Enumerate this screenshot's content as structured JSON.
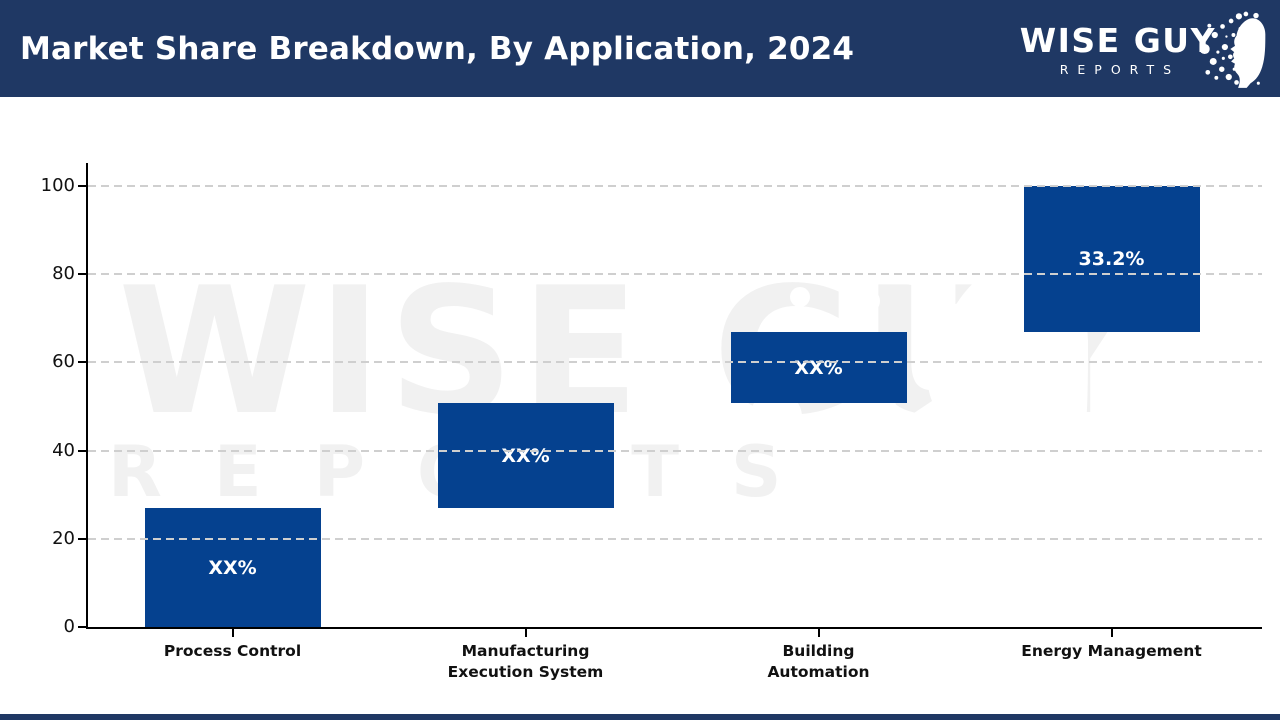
{
  "header": {
    "title": "Market Share Breakdown, By Application, 2024",
    "logo": {
      "wordmark": "WISE GUY",
      "subtext": "REPORTS"
    }
  },
  "watermark": {
    "wordmark": "WISE GUY",
    "subtext": "REPORTS"
  },
  "colors": {
    "header_bg": "#1f3864",
    "bar": "#05418f",
    "grid": "#cfcfcf",
    "watermark": "#f1f1f1",
    "bar_label": "#ffffff"
  },
  "chart_data": {
    "type": "bar",
    "variant": "floating-waterfall",
    "title": "Market Share Breakdown, By Application, 2024",
    "xlabel": "",
    "ylabel": "",
    "ylim": [
      0,
      100
    ],
    "yticks": [
      0,
      20,
      40,
      60,
      80,
      100
    ],
    "grid": "horizontal-dashed",
    "legend": "none",
    "bars": [
      {
        "category": "Process Control",
        "category_lines": [
          "Process Control"
        ],
        "start": 0,
        "end": 26.9,
        "label": "XX%"
      },
      {
        "category": "Manufacturing Execution System",
        "category_lines": [
          "Manufacturing",
          "Execution System"
        ],
        "start": 26.9,
        "end": 50.8,
        "label": "XX%"
      },
      {
        "category": "Building Automation",
        "category_lines": [
          "Building",
          "Automation"
        ],
        "start": 50.8,
        "end": 66.8,
        "label": "XX%"
      },
      {
        "category": "Energy Management",
        "category_lines": [
          "Energy Management"
        ],
        "start": 66.8,
        "end": 100,
        "label": "33.2%"
      }
    ]
  }
}
